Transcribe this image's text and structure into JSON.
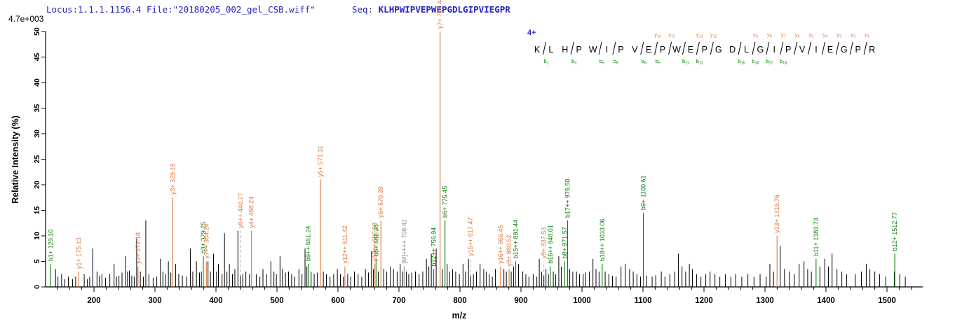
{
  "header": {
    "locus_file": "Locus:1.1.1.1156.4 File:\"20180205_002_gel_CSB.wiff\"",
    "seq_label": "Seq: ",
    "sequence": "KLHPWIPVEPWEPGDLGIPVIEGPR",
    "max_intensity": "4.7e+003"
  },
  "sequence_panel": {
    "charge": "4+",
    "residues": [
      "K",
      "L",
      "H",
      "P",
      "W",
      "I",
      "P",
      "V",
      "E",
      "P",
      "W",
      "E",
      "P",
      "G",
      "D",
      "L",
      "G",
      "I",
      "P",
      "V",
      "I",
      "E",
      "G",
      "P",
      "R"
    ],
    "b_ions": [
      {
        "label": "b1",
        "gap": 1
      },
      {
        "label": "b3",
        "gap": 3
      },
      {
        "label": "b5",
        "gap": 5
      },
      {
        "label": "b6",
        "gap": 6
      },
      {
        "label": "b8",
        "gap": 8
      },
      {
        "label": "b9",
        "gap": 9
      },
      {
        "label": "b11",
        "gap": 11
      },
      {
        "label": "b12",
        "gap": 12
      },
      {
        "label": "b15",
        "gap": 15
      },
      {
        "label": "b16",
        "gap": 16
      },
      {
        "label": "b17",
        "gap": 17
      },
      {
        "label": "b18",
        "gap": 18
      }
    ],
    "y_ions": [
      {
        "label": "y16",
        "gap": 9
      },
      {
        "label": "y15",
        "gap": 10
      },
      {
        "label": "y13",
        "gap": 12
      },
      {
        "label": "y12",
        "gap": 13
      },
      {
        "label": "y9",
        "gap": 16
      },
      {
        "label": "y8",
        "gap": 17
      },
      {
        "label": "y7",
        "gap": 18
      },
      {
        "label": "y6",
        "gap": 19
      },
      {
        "label": "y5",
        "gap": 20
      },
      {
        "label": "y4",
        "gap": 21
      },
      {
        "label": "y3",
        "gap": 22
      },
      {
        "label": "y2",
        "gap": 23
      },
      {
        "label": "y1",
        "gap": 24
      }
    ]
  },
  "colors": {
    "b_ion": "#0b800b",
    "y_ion": "#e07840",
    "precursor": "#8c8c8c",
    "peak": "#000000",
    "header_blue": "#2525c0",
    "dashed_line": "#b3b3b3"
  },
  "chart_data": {
    "type": "bar",
    "title": "MS/MS fragmentation spectrum",
    "xlabel": "m/z",
    "ylabel": "Relative  Intensity (%)",
    "x_range": [
      120,
      1555
    ],
    "y_range": [
      0,
      50
    ],
    "x_major_ticks": [
      200,
      300,
      400,
      500,
      600,
      700,
      800,
      900,
      1000,
      1100,
      1200,
      1300,
      1400,
      1500
    ],
    "x_minor_step": 20,
    "y_ticks": [
      0,
      5,
      10,
      15,
      20,
      25,
      30,
      35,
      40,
      45,
      50
    ],
    "grid": false,
    "legend": "none",
    "peaks": [
      {
        "mz": 129.1,
        "intensity": 4.5,
        "label": "b1+ 129.10",
        "ion": "b"
      },
      {
        "mz": 175.13,
        "intensity": 3.0,
        "label": "y1+ 175.13",
        "ion": "y"
      },
      {
        "mz": 272.18,
        "intensity": 4.0,
        "label": "y2+ 272.18",
        "ion": "y"
      },
      {
        "mz": 329.19,
        "intensity": 17.5,
        "label": "y3+ 329.19",
        "ion": "y"
      },
      {
        "mz": 379.25,
        "intensity": 6.0,
        "label": "b3+ 379.25",
        "ion": "b"
      },
      {
        "mz": 384.24,
        "intensity": 5.0,
        "label": "y7++ 384.24",
        "ion": "y"
      },
      {
        "mz": 440.27,
        "intensity": 11.0,
        "label": "y8++ 440.27",
        "ion": "y",
        "dashed": true
      },
      {
        "mz": 458.24,
        "intensity": 11.0,
        "label": "y4+ 458.24",
        "ion": "y"
      },
      {
        "mz": 551.24,
        "intensity": 4.5,
        "label": "b9++ 551.24",
        "ion": "b"
      },
      {
        "mz": 571.31,
        "intensity": 21.0,
        "label": "y5+ 571.31",
        "ion": "y"
      },
      {
        "mz": 611.42,
        "intensity": 4.0,
        "label": "y12++ 611.42",
        "ion": "y"
      },
      {
        "mz": 660.38,
        "intensity": 4.5,
        "label": "y13++ 660.38",
        "ion": "y"
      },
      {
        "mz": 662.38,
        "intensity": 5.5,
        "label": "b5+ 662.38",
        "ion": "b"
      },
      {
        "mz": 670.39,
        "intensity": 13.0,
        "label": "y6+ 670.39",
        "ion": "y"
      },
      {
        "mz": 708.42,
        "intensity": 4.0,
        "label": "[M]++++ 708.42",
        "ion": "precursor"
      },
      {
        "mz": 756.94,
        "intensity": 3.5,
        "label": "b12++ 756.94",
        "ion": "b"
      },
      {
        "mz": 767.44,
        "intensity": 50.0,
        "label": "y7+ 767.44",
        "ion": "y"
      },
      {
        "mz": 775.45,
        "intensity": 13.0,
        "label": "b6+ 775.45",
        "ion": "b"
      },
      {
        "mz": 817.47,
        "intensity": 5.5,
        "label": "y15++ 817.47",
        "ion": "y",
        "dashed": true
      },
      {
        "mz": 866.45,
        "intensity": 4.0,
        "label": "y16++ 866.45",
        "ion": "y"
      },
      {
        "mz": 880.52,
        "intensity": 3.5,
        "label": "y8+ 880.52",
        "ion": "y"
      },
      {
        "mz": 891.44,
        "intensity": 5.0,
        "label": "b15++ 891.44",
        "ion": "b"
      },
      {
        "mz": 937.53,
        "intensity": 5.0,
        "label": "y9+ 937.53",
        "ion": "y",
        "dashed": true
      },
      {
        "mz": 948.01,
        "intensity": 4.0,
        "label": "b16++ 948.01",
        "ion": "b"
      },
      {
        "mz": 971.57,
        "intensity": 5.0,
        "label": "b8+ 971.57",
        "ion": "b"
      },
      {
        "mz": 976.5,
        "intensity": 13.0,
        "label": "b17++ 976.50",
        "ion": "b"
      },
      {
        "mz": 1033.06,
        "intensity": 4.5,
        "label": "b18++ 1033.06",
        "ion": "b"
      },
      {
        "mz": 1100.61,
        "intensity": 14.5,
        "label": "b9+ 1100.61",
        "ion": "b"
      },
      {
        "mz": 1319.76,
        "intensity": 10.0,
        "label": "y13+ 1319.76",
        "ion": "y"
      },
      {
        "mz": 1383.73,
        "intensity": 5.5,
        "label": "b11+ 1383.73",
        "ion": "b"
      },
      {
        "mz": 1512.77,
        "intensity": 6.5,
        "label": "b12+ 1512.77",
        "ion": "b"
      }
    ],
    "background_peaks": [
      [
        137,
        3.5
      ],
      [
        141,
        2
      ],
      [
        147,
        2.5
      ],
      [
        152,
        1.5
      ],
      [
        158,
        2
      ],
      [
        165,
        1.5
      ],
      [
        170,
        2
      ],
      [
        184,
        2.5
      ],
      [
        189,
        1.5
      ],
      [
        193,
        2
      ],
      [
        198,
        7.5
      ],
      [
        205,
        3
      ],
      [
        209,
        2.2
      ],
      [
        213,
        2.5
      ],
      [
        219,
        1.8
      ],
      [
        226,
        2.5
      ],
      [
        233,
        4.5
      ],
      [
        237,
        2
      ],
      [
        241,
        2.2
      ],
      [
        246,
        2.8
      ],
      [
        252,
        6
      ],
      [
        255,
        3
      ],
      [
        258,
        3.2
      ],
      [
        262,
        2.2
      ],
      [
        266,
        2
      ],
      [
        270,
        9.5
      ],
      [
        276,
        3
      ],
      [
        281,
        2
      ],
      [
        285,
        13
      ],
      [
        290,
        2.5
      ],
      [
        297,
        1.8
      ],
      [
        303,
        2
      ],
      [
        309,
        5.5
      ],
      [
        313,
        3
      ],
      [
        317,
        2.5
      ],
      [
        322,
        5
      ],
      [
        326,
        2.8
      ],
      [
        334,
        4.5
      ],
      [
        339,
        2.5
      ],
      [
        345,
        2.2
      ],
      [
        352,
        2
      ],
      [
        358,
        7.5
      ],
      [
        362,
        3
      ],
      [
        368,
        5
      ],
      [
        373,
        2.8
      ],
      [
        376,
        3
      ],
      [
        387,
        5
      ],
      [
        391,
        3
      ],
      [
        396,
        6.5
      ],
      [
        401,
        3
      ],
      [
        404,
        4.5
      ],
      [
        410,
        2.5
      ],
      [
        414,
        10.5
      ],
      [
        418,
        3
      ],
      [
        422,
        4.5
      ],
      [
        427,
        2.5
      ],
      [
        431,
        3.5
      ],
      [
        436,
        11
      ],
      [
        444,
        2.5
      ],
      [
        449,
        3
      ],
      [
        455,
        2.5
      ],
      [
        466,
        2.5
      ],
      [
        472,
        2
      ],
      [
        477,
        3.5
      ],
      [
        483,
        2.5
      ],
      [
        490,
        5
      ],
      [
        495,
        3
      ],
      [
        499,
        2.5
      ],
      [
        505,
        6
      ],
      [
        509,
        3.5
      ],
      [
        514,
        2.8
      ],
      [
        519,
        3
      ],
      [
        524,
        2.5
      ],
      [
        529,
        2
      ],
      [
        536,
        3.5
      ],
      [
        541,
        2.5
      ],
      [
        546,
        7.5
      ],
      [
        549,
        4
      ],
      [
        556,
        3
      ],
      [
        561,
        2.5
      ],
      [
        566,
        2.8
      ],
      [
        576,
        3
      ],
      [
        581,
        2.5
      ],
      [
        587,
        2
      ],
      [
        593,
        2.5
      ],
      [
        599,
        3.5
      ],
      [
        604,
        2.5
      ],
      [
        609,
        2
      ],
      [
        616,
        2.5
      ],
      [
        621,
        2
      ],
      [
        627,
        3
      ],
      [
        633,
        2.5
      ],
      [
        639,
        2
      ],
      [
        645,
        3.5
      ],
      [
        650,
        2.8
      ],
      [
        655,
        7
      ],
      [
        658,
        3.5
      ],
      [
        666,
        3
      ],
      [
        675,
        3.5
      ],
      [
        680,
        3
      ],
      [
        686,
        4
      ],
      [
        691,
        3.5
      ],
      [
        697,
        3
      ],
      [
        702,
        4.5
      ],
      [
        706,
        3
      ],
      [
        712,
        3
      ],
      [
        716,
        2.5
      ],
      [
        721,
        2.8
      ],
      [
        727,
        3
      ],
      [
        733,
        2.5
      ],
      [
        739,
        3
      ],
      [
        745,
        5.5
      ],
      [
        749,
        4
      ],
      [
        753,
        6.5
      ],
      [
        761,
        7.5
      ],
      [
        771,
        3.5
      ],
      [
        779,
        4.5
      ],
      [
        783,
        3
      ],
      [
        788,
        3.5
      ],
      [
        793,
        3
      ],
      [
        799,
        2.5
      ],
      [
        805,
        4.5
      ],
      [
        809,
        3
      ],
      [
        814,
        5.5
      ],
      [
        822,
        2.5
      ],
      [
        827,
        3
      ],
      [
        833,
        4.5
      ],
      [
        839,
        3.5
      ],
      [
        843,
        3
      ],
      [
        848,
        2.5
      ],
      [
        853,
        2
      ],
      [
        858,
        3.5
      ],
      [
        872,
        3.5
      ],
      [
        876,
        3
      ],
      [
        884,
        3
      ],
      [
        888,
        4
      ],
      [
        896,
        4.5
      ],
      [
        903,
        3
      ],
      [
        908,
        2.5
      ],
      [
        913,
        2
      ],
      [
        920,
        2.5
      ],
      [
        926,
        2
      ],
      [
        930,
        5.5
      ],
      [
        934,
        3
      ],
      [
        941,
        3.5
      ],
      [
        945,
        2.5
      ],
      [
        953,
        3
      ],
      [
        957,
        2.5
      ],
      [
        962,
        6
      ],
      [
        966,
        4
      ],
      [
        980,
        3.5
      ],
      [
        985,
        3
      ],
      [
        991,
        3
      ],
      [
        996,
        2.5
      ],
      [
        1002,
        2.5
      ],
      [
        1006,
        2.8
      ],
      [
        1012,
        3
      ],
      [
        1018,
        5.5
      ],
      [
        1023,
        3.5
      ],
      [
        1028,
        3
      ],
      [
        1038,
        3
      ],
      [
        1044,
        2.5
      ],
      [
        1050,
        2.2
      ],
      [
        1056,
        2
      ],
      [
        1064,
        4
      ],
      [
        1071,
        4.5
      ],
      [
        1078,
        3.5
      ],
      [
        1084,
        3
      ],
      [
        1090,
        2.5
      ],
      [
        1096,
        2
      ],
      [
        1106,
        2.2
      ],
      [
        1115,
        2
      ],
      [
        1121,
        2.3
      ],
      [
        1130,
        3
      ],
      [
        1136,
        2
      ],
      [
        1144,
        2.5
      ],
      [
        1152,
        3
      ],
      [
        1158,
        6.5
      ],
      [
        1164,
        4
      ],
      [
        1170,
        3
      ],
      [
        1176,
        4.5
      ],
      [
        1181,
        3.5
      ],
      [
        1188,
        2.5
      ],
      [
        1195,
        2
      ],
      [
        1203,
        2.5
      ],
      [
        1210,
        3
      ],
      [
        1218,
        2.5
      ],
      [
        1226,
        2
      ],
      [
        1235,
        2.5
      ],
      [
        1244,
        2
      ],
      [
        1252,
        2.5
      ],
      [
        1262,
        2
      ],
      [
        1272,
        2.5
      ],
      [
        1282,
        2
      ],
      [
        1292,
        2.5
      ],
      [
        1302,
        2
      ],
      [
        1308,
        4.5
      ],
      [
        1314,
        3
      ],
      [
        1325,
        8
      ],
      [
        1332,
        3.5
      ],
      [
        1340,
        3
      ],
      [
        1348,
        2.5
      ],
      [
        1356,
        4.5
      ],
      [
        1364,
        5
      ],
      [
        1370,
        3.5
      ],
      [
        1376,
        3
      ],
      [
        1390,
        4
      ],
      [
        1398,
        5.5
      ],
      [
        1404,
        4
      ],
      [
        1410,
        6.5
      ],
      [
        1418,
        3.5
      ],
      [
        1426,
        3
      ],
      [
        1434,
        2.5
      ],
      [
        1448,
        2.5
      ],
      [
        1458,
        3
      ],
      [
        1466,
        4.5
      ],
      [
        1472,
        3.5
      ],
      [
        1480,
        3
      ],
      [
        1488,
        2.5
      ],
      [
        1498,
        2
      ],
      [
        1512,
        3
      ],
      [
        1521,
        2.5
      ],
      [
        1530,
        2
      ]
    ]
  }
}
